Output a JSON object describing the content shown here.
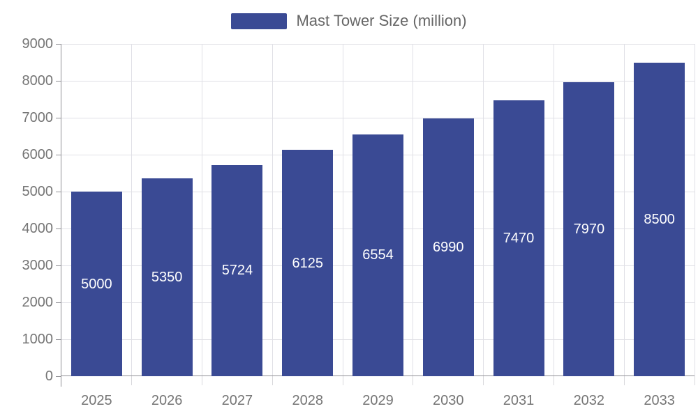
{
  "legend": {
    "label": "Mast Tower Size (million)"
  },
  "chart_data": {
    "type": "bar",
    "title": "Mast Tower Size (million)",
    "series": [
      {
        "name": "Mast Tower Size (million)",
        "values": [
          5000,
          5350,
          5724,
          6125,
          6554,
          6990,
          7470,
          7970,
          8500
        ]
      }
    ],
    "categories": [
      "2025",
      "2026",
      "2027",
      "2028",
      "2029",
      "2030",
      "2031",
      "2032",
      "2033"
    ],
    "xlabel": "",
    "ylabel": "",
    "ylim": [
      0,
      9000
    ],
    "y_ticks": [
      0,
      1000,
      2000,
      3000,
      4000,
      5000,
      6000,
      7000,
      8000,
      9000
    ],
    "grid": true,
    "legend_position": "top-center",
    "bar_labels_inside": true
  },
  "colors": {
    "bar": "#3A4A94",
    "grid": "#E0E0E6",
    "axis": "#909095",
    "x_tick": "#D8D8DC",
    "tick_label": "#757575",
    "legend_text": "#666666",
    "bar_label": "#FFFFFF",
    "background": "#FFFFFF"
  }
}
